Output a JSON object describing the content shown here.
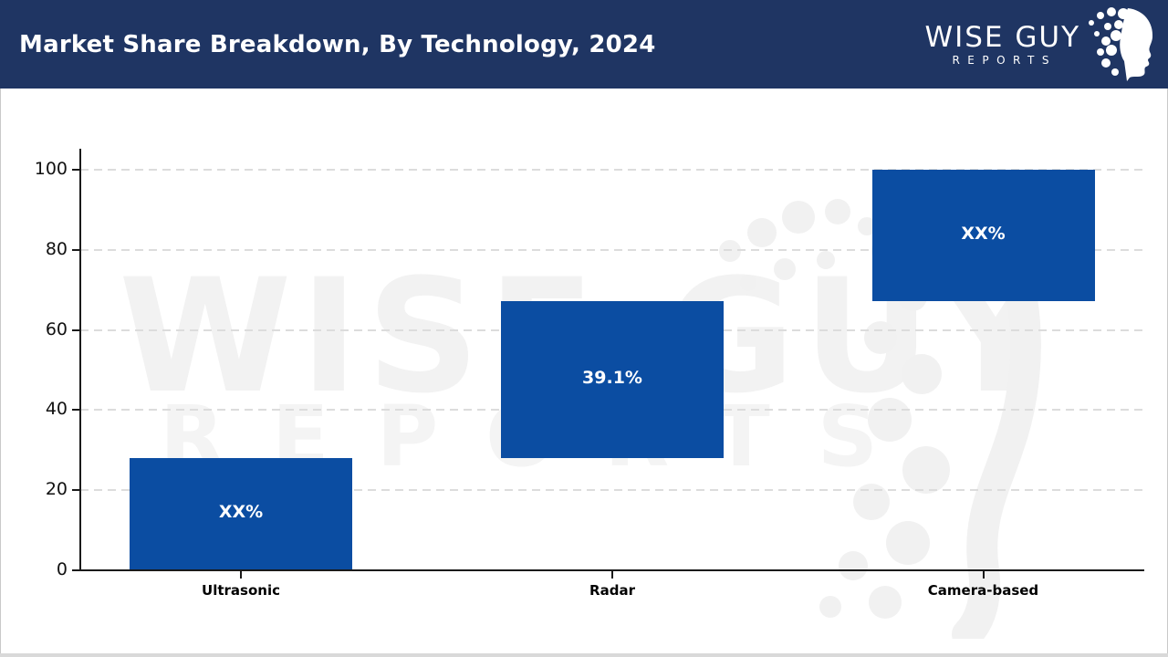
{
  "header": {
    "title": "Market Share Breakdown, By Technology, 2024",
    "logo": {
      "line1": "WISE GUY",
      "line2": "REPORTS",
      "icon": "dotted-face-profile"
    }
  },
  "watermark": {
    "line1": "WISE GUY",
    "line2": "REPORTS"
  },
  "chart_data": {
    "type": "bar",
    "subtype": "waterfall",
    "title": "Market Share Breakdown, By Technology, 2024",
    "categories": [
      "Ultrasonic",
      "Radar",
      "Camera-based"
    ],
    "segments": [
      {
        "category": "Ultrasonic",
        "start": 0,
        "end": 28.1,
        "value_label": "XX%"
      },
      {
        "category": "Radar",
        "start": 28.1,
        "end": 67.2,
        "value_label": "39.1%"
      },
      {
        "category": "Camera-based",
        "start": 67.2,
        "end": 100,
        "value_label": "XX%"
      }
    ],
    "ylim": [
      0,
      100
    ],
    "yticks": [
      0,
      20,
      40,
      60,
      80,
      100
    ],
    "xlabel": "",
    "ylabel": "",
    "grid": "horizontal-dashed",
    "legend": "none",
    "bar_color": "#0b4da2",
    "bar_label_color": "#ffffff",
    "axis_color": "#1a1a1a",
    "gridline_color": "#dcdcdc",
    "header_background": "#1f3563"
  }
}
